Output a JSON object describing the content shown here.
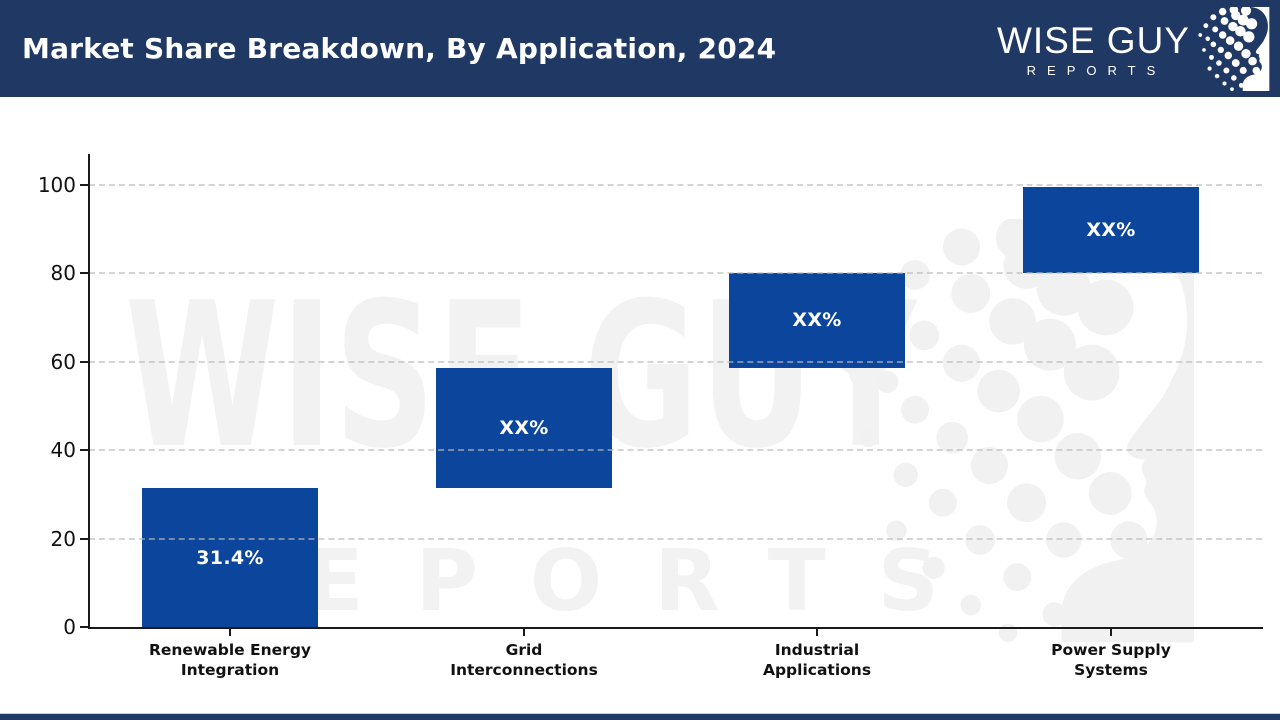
{
  "header": {
    "title": "Market Share Breakdown, By Application, 2024",
    "logo": {
      "line1": "WISE GUY",
      "line2": "REPORTS"
    },
    "bg_color": "#203864"
  },
  "watermark": {
    "line1": "WISE GUY",
    "line2": "REPORTS"
  },
  "chart_data": {
    "type": "bar",
    "variant": "waterfall",
    "title": "Market Share Breakdown, By Application, 2024",
    "categories": [
      "Renewable Energy Integration",
      "Grid Interconnections",
      "Industrial Applications",
      "Power Supply Systems"
    ],
    "category_lines": [
      [
        "Renewable Energy",
        "Integration"
      ],
      [
        "Grid",
        "Interconnections"
      ],
      [
        "Industrial",
        "Applications"
      ],
      [
        "Power Supply",
        "Systems"
      ]
    ],
    "segments": [
      {
        "category": "Renewable Energy Integration",
        "start": 0,
        "end": 31.4,
        "label": "31.4%"
      },
      {
        "category": "Grid Interconnections",
        "start": 31.4,
        "end": 58.6,
        "label": "XX%"
      },
      {
        "category": "Industrial Applications",
        "start": 58.6,
        "end": 80.1,
        "label": "XX%"
      },
      {
        "category": "Power Supply Systems",
        "start": 80.1,
        "end": 99.4,
        "label": "XX%"
      }
    ],
    "yticks": [
      0,
      20,
      40,
      60,
      80,
      100
    ],
    "ylim": [
      0,
      106
    ],
    "bar_color": "#0c459c",
    "grid": "horizontal-dashed",
    "legend": "none",
    "xlabel": "",
    "ylabel": ""
  }
}
